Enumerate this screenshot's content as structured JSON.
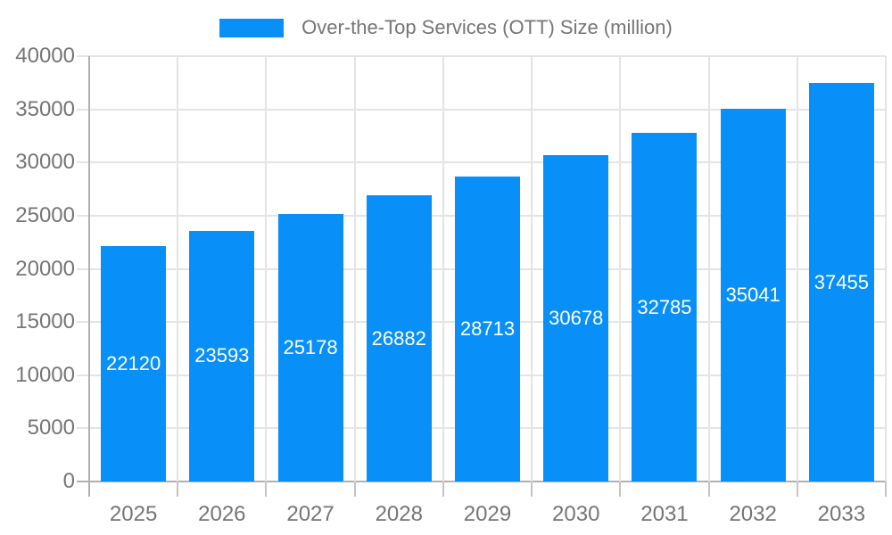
{
  "legend": {
    "label": "Over-the-Top Services (OTT) Size (million)"
  },
  "chart_data": {
    "type": "bar",
    "categories": [
      "2025",
      "2026",
      "2027",
      "2028",
      "2029",
      "2030",
      "2031",
      "2032",
      "2033"
    ],
    "series": [
      {
        "name": "Over-the-Top Services (OTT) Size (million)",
        "values": [
          22120,
          23593,
          25178,
          26882,
          28713,
          30678,
          32785,
          35041,
          37455
        ]
      }
    ],
    "title": "",
    "xlabel": "",
    "ylabel": "",
    "ylim": [
      0,
      40000
    ],
    "ytick_step": 5000,
    "yticks": [
      0,
      5000,
      10000,
      15000,
      20000,
      25000,
      30000,
      35000,
      40000
    ],
    "grid": true,
    "legend_position": "top",
    "bar_labels_inside": true,
    "colors": {
      "bar": "#0890f8",
      "bar_label": "#ffffff",
      "axis_line": "#b0b0b0",
      "grid_line": "#e4e4e4",
      "tick_mark": "#c4c4c4",
      "tick_text": "#757575",
      "legend_text": "#757575",
      "background": "#ffffff"
    }
  }
}
